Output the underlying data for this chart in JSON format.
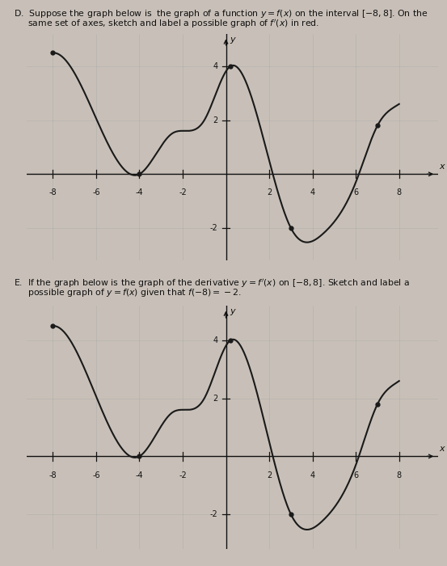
{
  "title_D_line1": "D.  Suppose the graph below is  the graph of a function $y = f(x)$ on the interval $[-8, 8]$. On the",
  "title_D_line2": "     same set of axes, sketch and label a possible graph of $f'(x)$ in red.",
  "title_E_line1": "E.  If the graph below is the graph of the derivative $y = f'(x)$ on $[-8, 8]$. Sketch and label a",
  "title_E_line2": "     possible graph of $y = f(x)$ given that $f(-8) = -2$.",
  "xlim": [
    -9.2,
    9.8
  ],
  "ylim": [
    -3.2,
    5.2
  ],
  "xticks": [
    -8,
    -6,
    -4,
    -2,
    2,
    4,
    6,
    8
  ],
  "yticks": [
    -2,
    2,
    4
  ],
  "curve_color": "#1a1a1a",
  "bg_color": "#c8c0b8",
  "text_color": "#111111",
  "axis_color": "#111111",
  "ctrl_x": [
    -8,
    -5.5,
    -4,
    -2.5,
    -1.0,
    0.2,
    1.5,
    3.0,
    4.5,
    6.0,
    7.0,
    7.8,
    8
  ],
  "ctrl_y": [
    4.5,
    1.2,
    0,
    1.5,
    2.0,
    4.0,
    2.0,
    -2.0,
    -2.2,
    -0.3,
    1.8,
    2.5,
    2.6
  ]
}
